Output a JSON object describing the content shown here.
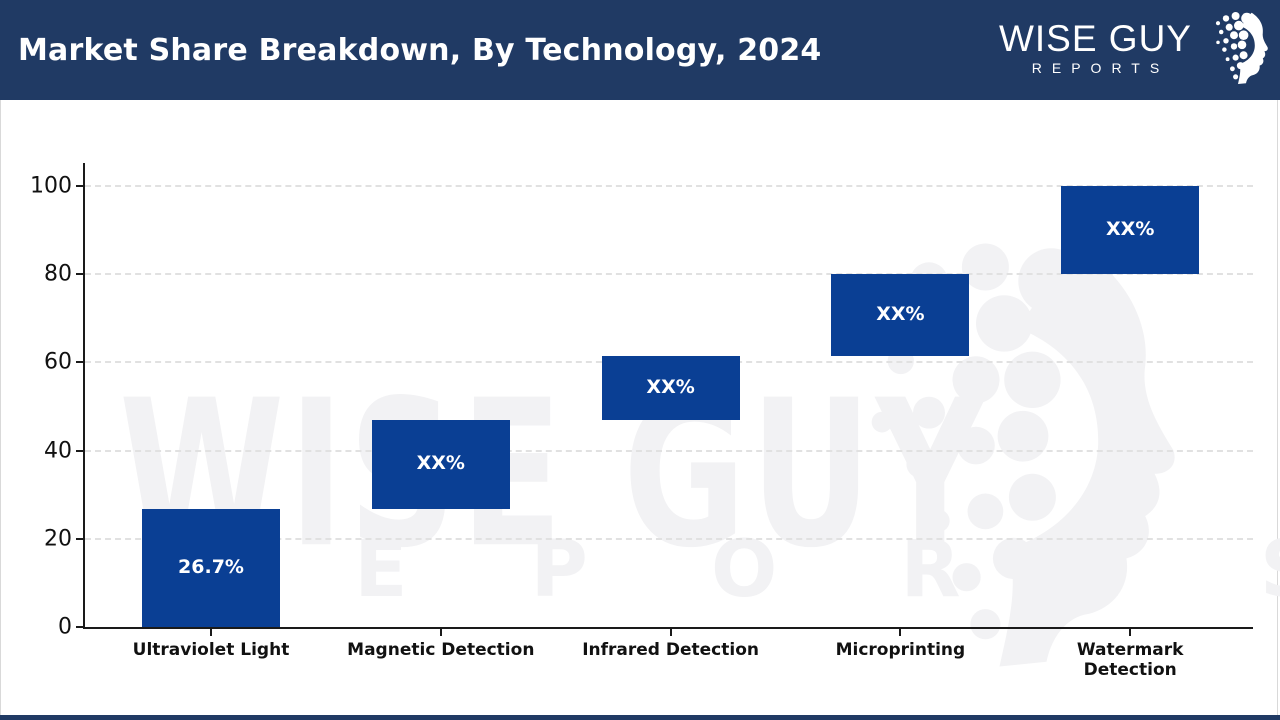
{
  "header": {
    "title": "Market Share Breakdown, By Technology, 2024",
    "logo": {
      "wordmark": "WISE GUY",
      "subtitle": "REPORTS"
    }
  },
  "watermark": {
    "line1": "WISE GUY",
    "line2": "R E P O R T S"
  },
  "chart_data": {
    "type": "bar",
    "subtype": "waterfall",
    "title": "Market Share Breakdown, By Technology, 2024",
    "xlabel": "",
    "ylabel": "",
    "categories": [
      "Ultraviolet Light",
      "Magnetic Detection",
      "Infrared Detection",
      "Microprinting",
      "Watermark Detection"
    ],
    "segments": [
      {
        "category": "Ultraviolet Light",
        "start": 0,
        "end": 26.7,
        "label": "26.7%"
      },
      {
        "category": "Magnetic Detection",
        "start": 26.7,
        "end": 47.0,
        "label": "XX%"
      },
      {
        "category": "Infrared Detection",
        "start": 47.0,
        "end": 61.5,
        "label": "XX%"
      },
      {
        "category": "Microprinting",
        "start": 61.5,
        "end": 80.0,
        "label": "XX%"
      },
      {
        "category": "Watermark Detection",
        "start": 80.0,
        "end": 100.0,
        "label": "XX%"
      }
    ],
    "yticks": [
      0,
      20,
      40,
      60,
      80,
      100
    ],
    "ylim": [
      0,
      105
    ],
    "grid": {
      "horizontal": true,
      "style": "dashed"
    },
    "legend": "none"
  },
  "colors": {
    "header_bg": "#203a64",
    "footer_bg": "#203a64",
    "bar": "#0a3f94",
    "bar_label": "#ffffff",
    "axis": "#1a1a1a",
    "gridline": "#e1e1e1",
    "watermark": "#f2f2f4"
  }
}
